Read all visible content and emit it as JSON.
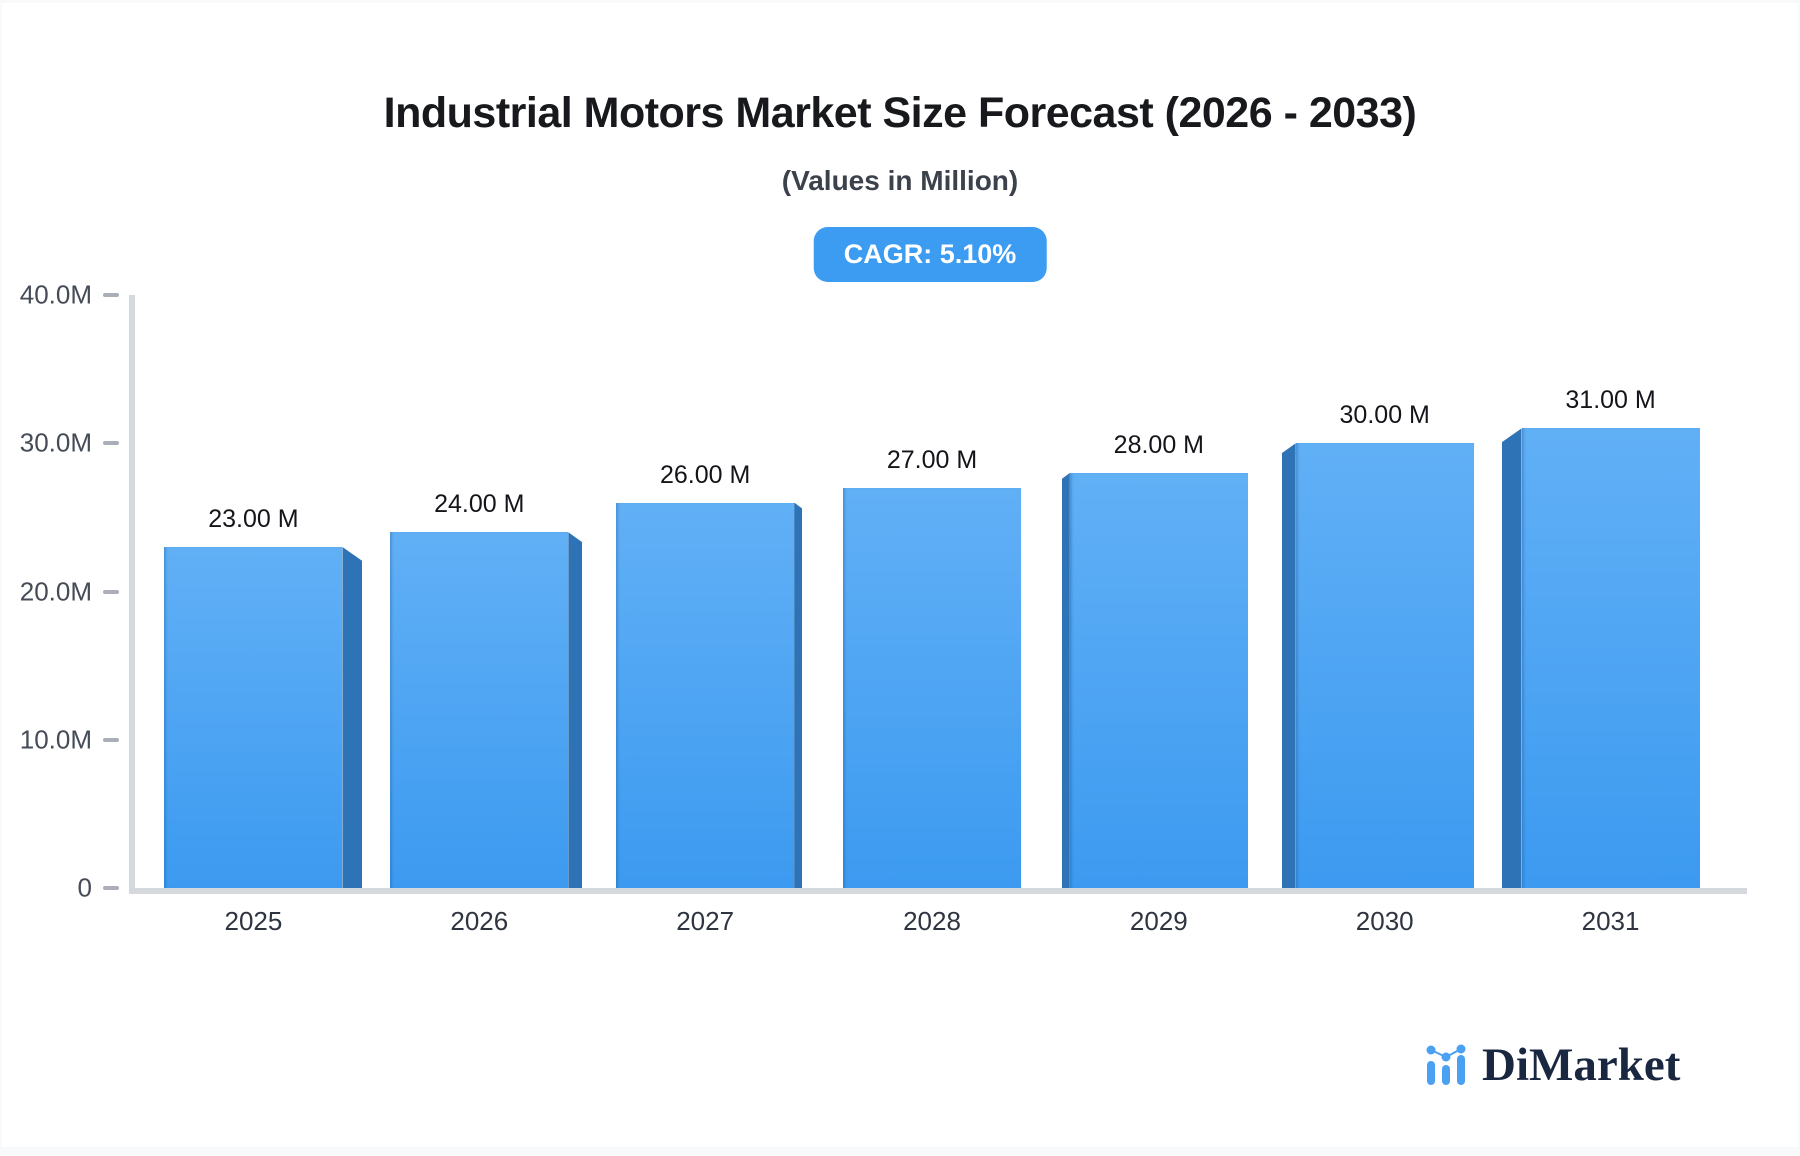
{
  "page": {
    "background": "#f8f9fb",
    "card_background": "#ffffff"
  },
  "header": {
    "title": "Industrial Motors Market Size Forecast (2026 - 2033)",
    "subtitle": "(Values in Million)",
    "cagr_badge": "CAGR: 5.10%",
    "badge_color": "#3b9cf2"
  },
  "footer": {
    "logo_text": "DiMarket",
    "logo_icon": "bar-chart-trend-icon",
    "logo_text_color": "#1a2740",
    "logo_icon_color": "#4aa0f2"
  },
  "chart_data": {
    "type": "bar",
    "style": "3d-perspective-columns",
    "title": "Industrial Motors Market Size Forecast (2026 - 2033)",
    "subtitle": "(Values in Million)",
    "annotation": "CAGR: 5.10%",
    "categories": [
      "2025",
      "2026",
      "2027",
      "2028",
      "2029",
      "2030",
      "2031"
    ],
    "values": [
      23,
      24,
      26,
      27,
      28,
      30,
      31
    ],
    "bar_labels": [
      "23.00 M",
      "24.00 M",
      "26.00 M",
      "27.00 M",
      "28.00 M",
      "30.00 M",
      "31.00 M"
    ],
    "xlabel": "",
    "ylabel": "",
    "ylim": [
      0,
      40
    ],
    "yticks": [
      {
        "value": 40,
        "label": "40.0M"
      },
      {
        "value": 30,
        "label": "30.0M"
      },
      {
        "value": 20,
        "label": "20.0M"
      },
      {
        "value": 10,
        "label": "10.0M"
      },
      {
        "value": 0,
        "label": "0"
      }
    ],
    "grid": false,
    "legend": false,
    "colors": {
      "bar_face_top": "#61b0f6",
      "bar_face_bottom": "#3c9af0",
      "bar_side": "#2d73b5",
      "axis_line": "#d5d8dd",
      "tick_mark": "#a9aeb8",
      "tick_label": "#454b57",
      "value_label": "#14151a"
    }
  }
}
